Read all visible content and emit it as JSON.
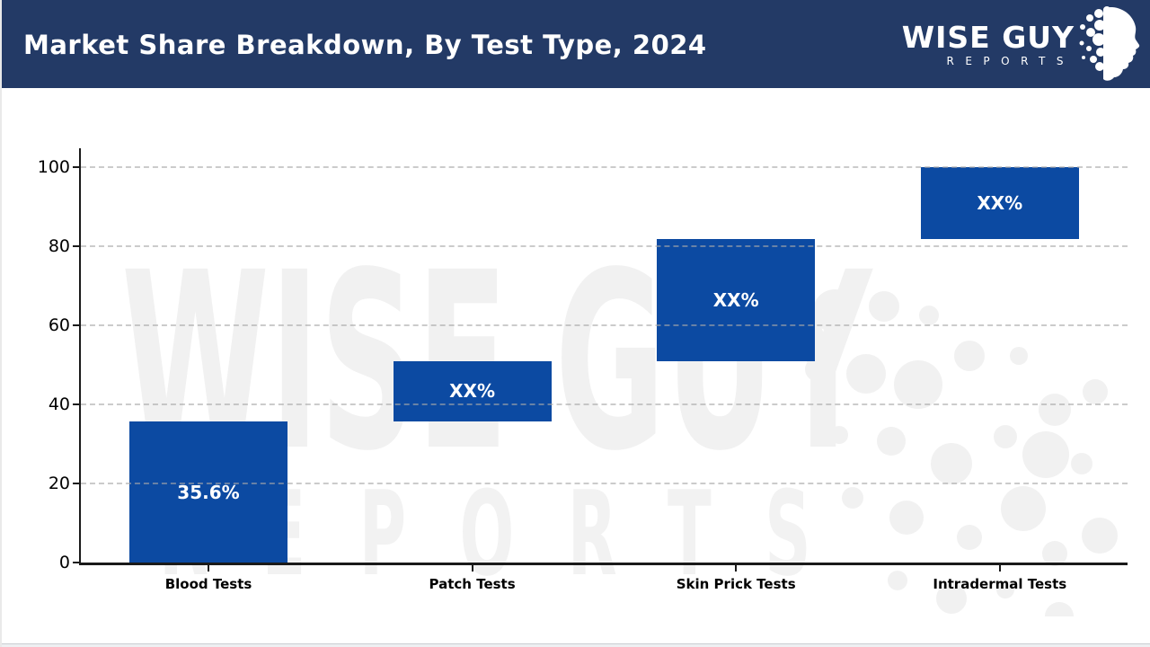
{
  "header": {
    "title": "Market Share Breakdown, By Test Type, 2024"
  },
  "brand": {
    "wordmark": "WISE GUY",
    "sub": "REPORTS"
  },
  "colors": {
    "header_bg": "#233a66",
    "bar": "#0c4aa2",
    "axis": "#1a1a1a",
    "grid": "rgba(168,168,168,0.6)",
    "watermark": "#f1f1f1",
    "value_label": "#ffffff"
  },
  "chart_data": {
    "type": "bar",
    "subtype": "waterfall",
    "title": "Market Share Breakdown, By Test Type, 2024",
    "categories": [
      "Blood Tests",
      "Patch Tests",
      "Skin Prick Tests",
      "Intradermal Tests"
    ],
    "segments": [
      {
        "category": "Blood Tests",
        "start": 0,
        "end": 35.6,
        "label": "35.6%"
      },
      {
        "category": "Patch Tests",
        "start": 35.6,
        "end": 51.0,
        "label": "XX%"
      },
      {
        "category": "Skin Prick Tests",
        "start": 51.0,
        "end": 81.9,
        "label": "XX%"
      },
      {
        "category": "Intradermal Tests",
        "start": 81.9,
        "end": 100.0,
        "label": "XX%"
      }
    ],
    "yticks": [
      0,
      20,
      40,
      60,
      80,
      100
    ],
    "ylim": [
      0,
      105
    ],
    "xlabel": "",
    "ylabel": "",
    "grid": "horizontal-dashed",
    "legend": "none",
    "bar_color": "#0c4aa2",
    "label_color": "#ffffff"
  }
}
